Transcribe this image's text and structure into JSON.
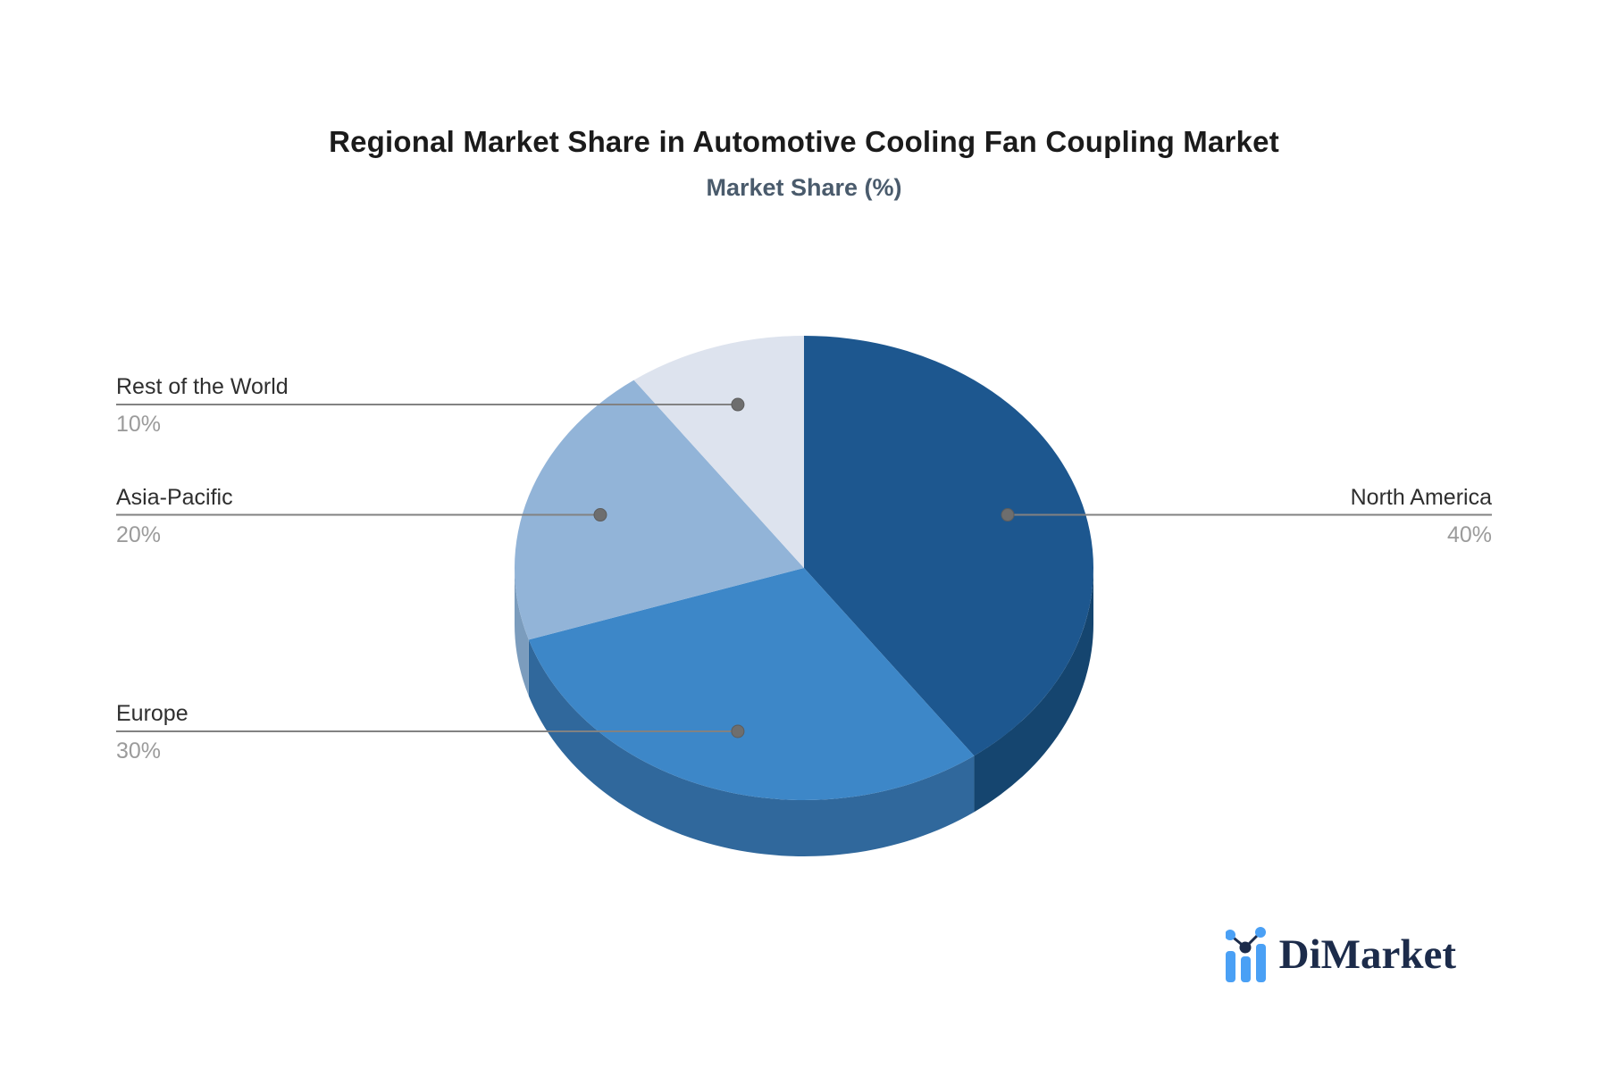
{
  "header": {
    "title": "Regional Market Share in Automotive Cooling Fan Coupling Market",
    "subtitle": "Market Share (%)"
  },
  "chart_data": {
    "type": "pie",
    "style": "3d",
    "title": "Regional Market Share in Automotive Cooling Fan Coupling Market",
    "subtitle": "Market Share (%)",
    "units": "%",
    "labels": [
      "North America",
      "Europe",
      "Asia-Pacific",
      "Rest of the World"
    ],
    "values": [
      40,
      30,
      20,
      10
    ],
    "pct_labels": [
      "40%",
      "30%",
      "20%",
      "10%"
    ],
    "colors": [
      "#1d578f",
      "#3d87c8",
      "#92b4d8",
      "#dde3ee"
    ],
    "side_colors": [
      "#15456f",
      "#30689c",
      "#7b9cbd",
      "#b9c4d4"
    ],
    "start_angle_deg": 0,
    "direction": "clockwise",
    "legend_position": "none",
    "grid": false
  },
  "annotations": {
    "line_color": "#828282",
    "dot_color": "#6e6e6e",
    "label_color": "#2f2f2f",
    "pct_color": "#9b9b9b"
  },
  "logo": {
    "text": "DiMarket",
    "text_color": "#1c2b4a",
    "icon": "bar-chart-icon",
    "icon_bar_color": "#4aa0f5",
    "icon_dot_color": "#1c2b4a"
  }
}
